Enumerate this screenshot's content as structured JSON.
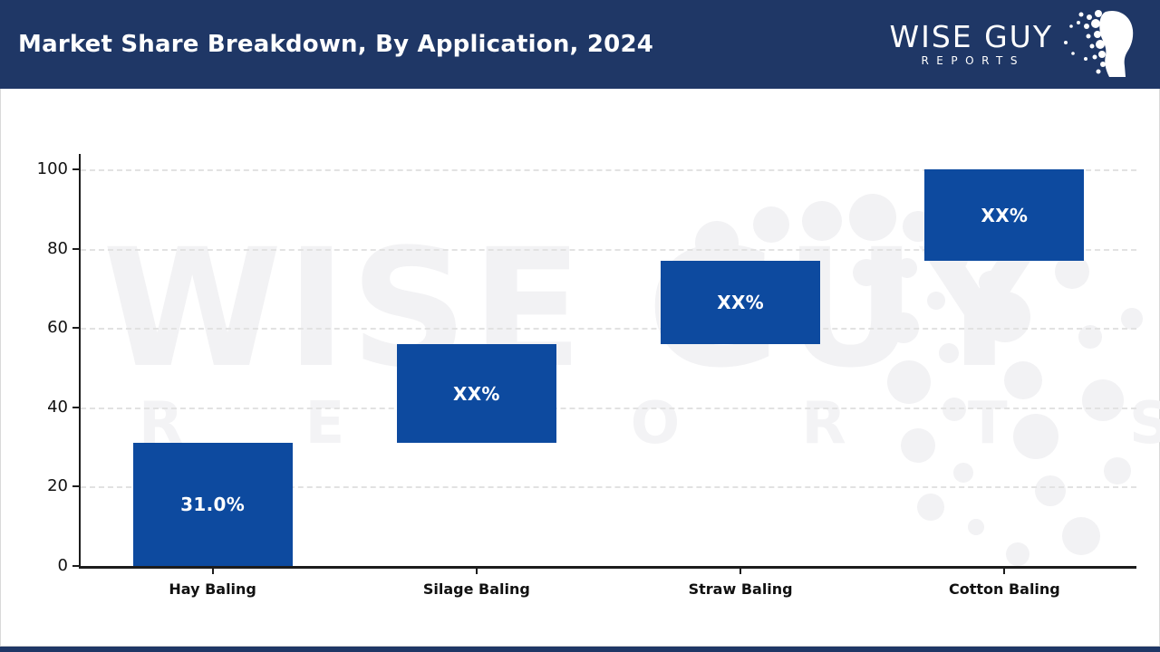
{
  "header": {
    "title": "Market Share Breakdown, By Application, 2024",
    "logo_primary": "WISE GUY",
    "logo_secondary": "REPORTS"
  },
  "watermark": {
    "primary": "WISE GUY",
    "secondary": "R E P O R T S"
  },
  "chart_data": {
    "type": "bar",
    "subtype": "floating-waterfall",
    "title": "Market Share Breakdown, By Application, 2024",
    "categories": [
      "Hay Baling",
      "Silage Baling",
      "Straw Baling",
      "Cotton Baling"
    ],
    "segments": [
      {
        "category": "Hay Baling",
        "start": 0,
        "end": 31,
        "label": "31.0%"
      },
      {
        "category": "Silage Baling",
        "start": 31,
        "end": 56,
        "label": "XX%"
      },
      {
        "category": "Straw Baling",
        "start": 56,
        "end": 77,
        "label": "XX%"
      },
      {
        "category": "Cotton Baling",
        "start": 77,
        "end": 100,
        "label": "XX%"
      }
    ],
    "values_estimated": [
      31,
      25,
      21,
      23
    ],
    "xlabel": "",
    "ylabel": "",
    "yticks": [
      0,
      20,
      40,
      60,
      80,
      100
    ],
    "ylim": [
      0,
      100
    ],
    "grid": "horizontal-dashed",
    "legend": "none",
    "bar_color": "#0D4A9F",
    "bar_label_color": "#ffffff"
  },
  "colors": {
    "header_bg": "#1F3766",
    "footer_bg": "#1F3766",
    "bar": "#0D4A9F",
    "gridline": "#e2e2e2",
    "watermark": "#f2f2f4",
    "axis": "#1c1c1c"
  }
}
